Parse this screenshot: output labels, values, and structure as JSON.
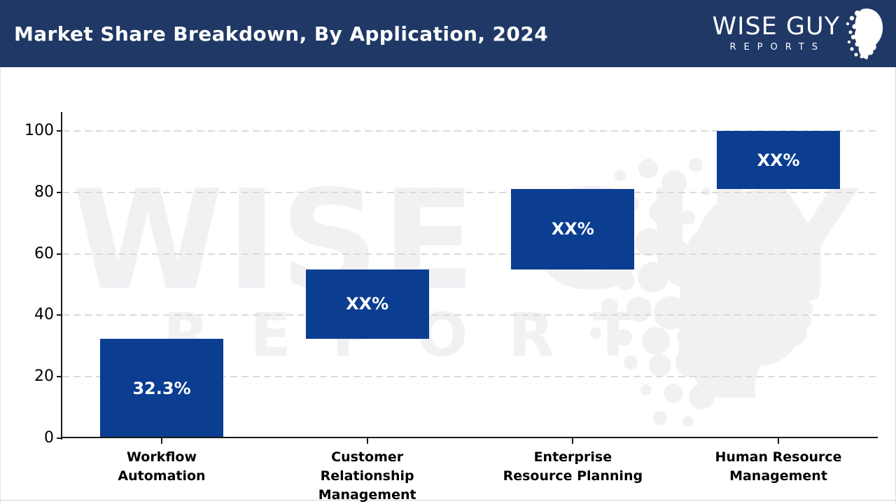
{
  "header": {
    "title": "Market Share Breakdown, By Application, 2024",
    "logo": {
      "name": "WISE GUY",
      "tagline": "REPORTS"
    }
  },
  "watermark": {
    "text": "WISE GUY",
    "tagline": "REPORTS"
  },
  "chart_data": {
    "type": "bar",
    "variant": "waterfall",
    "title": "Market Share Breakdown, By Application, 2024",
    "categories": [
      "Workflow Automation",
      "Customer Relationship Management",
      "Enterprise Resource Planning",
      "Human Resource Management"
    ],
    "categories_wrapped": [
      [
        "Workflow",
        "Automation"
      ],
      [
        "Customer",
        "Relationship",
        "Management"
      ],
      [
        "Enterprise",
        "Resource Planning"
      ],
      [
        "Human Resource",
        "Management"
      ]
    ],
    "segments": [
      {
        "category": "Workflow Automation",
        "start": 0,
        "end": 32.3,
        "label": "32.3%"
      },
      {
        "category": "Customer Relationship Management",
        "start": 32.3,
        "end": 55,
        "label": "XX%"
      },
      {
        "category": "Enterprise Resource Planning",
        "start": 55,
        "end": 81,
        "label": "XX%"
      },
      {
        "category": "Human Resource Management",
        "start": 81,
        "end": 100,
        "label": "XX%"
      }
    ],
    "yticks": [
      0,
      20,
      40,
      60,
      80,
      100
    ],
    "ylim": [
      0,
      105
    ],
    "xlabel": "",
    "ylabel": "",
    "legend": "none",
    "grid": "horizontal-dashed",
    "colors": {
      "bar": "#0b3d91",
      "bar_label": "#ffffff",
      "grid": "#dadada",
      "axis": "#1a1a1a",
      "header_bg": "#1f3866",
      "watermark": "#f1f1f4"
    }
  }
}
